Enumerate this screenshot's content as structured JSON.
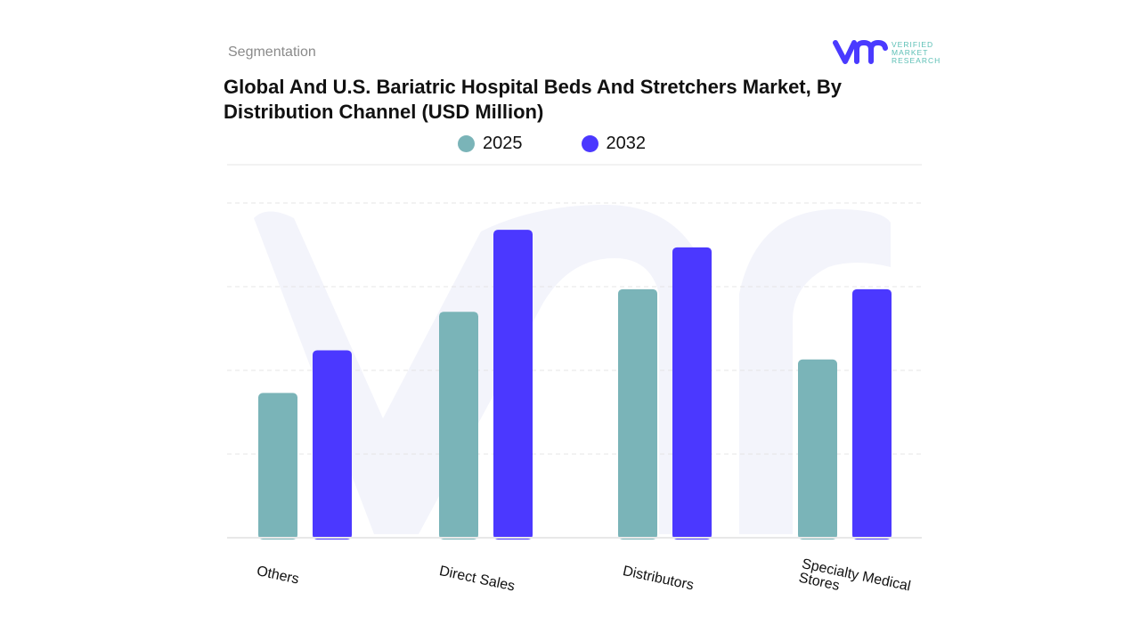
{
  "header": {
    "section": "Segmentation",
    "title": "Global And U.S. Bariatric Hospital Beds And Stretchers Market, By Distribution Channel (USD Million)"
  },
  "logo": {
    "mark": "vmr",
    "text": [
      "VERIFIED",
      "MARKET",
      "RESEARCH"
    ],
    "color": "#4a3aff",
    "text_color": "#5bbfb5"
  },
  "chart_data": {
    "type": "bar",
    "title": "Global And U.S. Bariatric Hospital Beds And Stretchers Market, By Distribution Channel (USD Million)",
    "xlabel": "",
    "ylabel": "",
    "categories": [
      "Others",
      "Direct Sales",
      "Distributors",
      "Specialty Medical Stores"
    ],
    "series": [
      {
        "name": "2025",
        "color": "#7ab4b8",
        "values": [
          1.73,
          2.7,
          2.97,
          2.13
        ]
      },
      {
        "name": "2032",
        "color": "#4b38ff",
        "values": [
          2.24,
          3.68,
          3.47,
          2.97
        ]
      }
    ],
    "ylim": [
      0,
      4.5
    ],
    "grid": true,
    "legend": "top",
    "y_tick_labels_shown": false
  }
}
